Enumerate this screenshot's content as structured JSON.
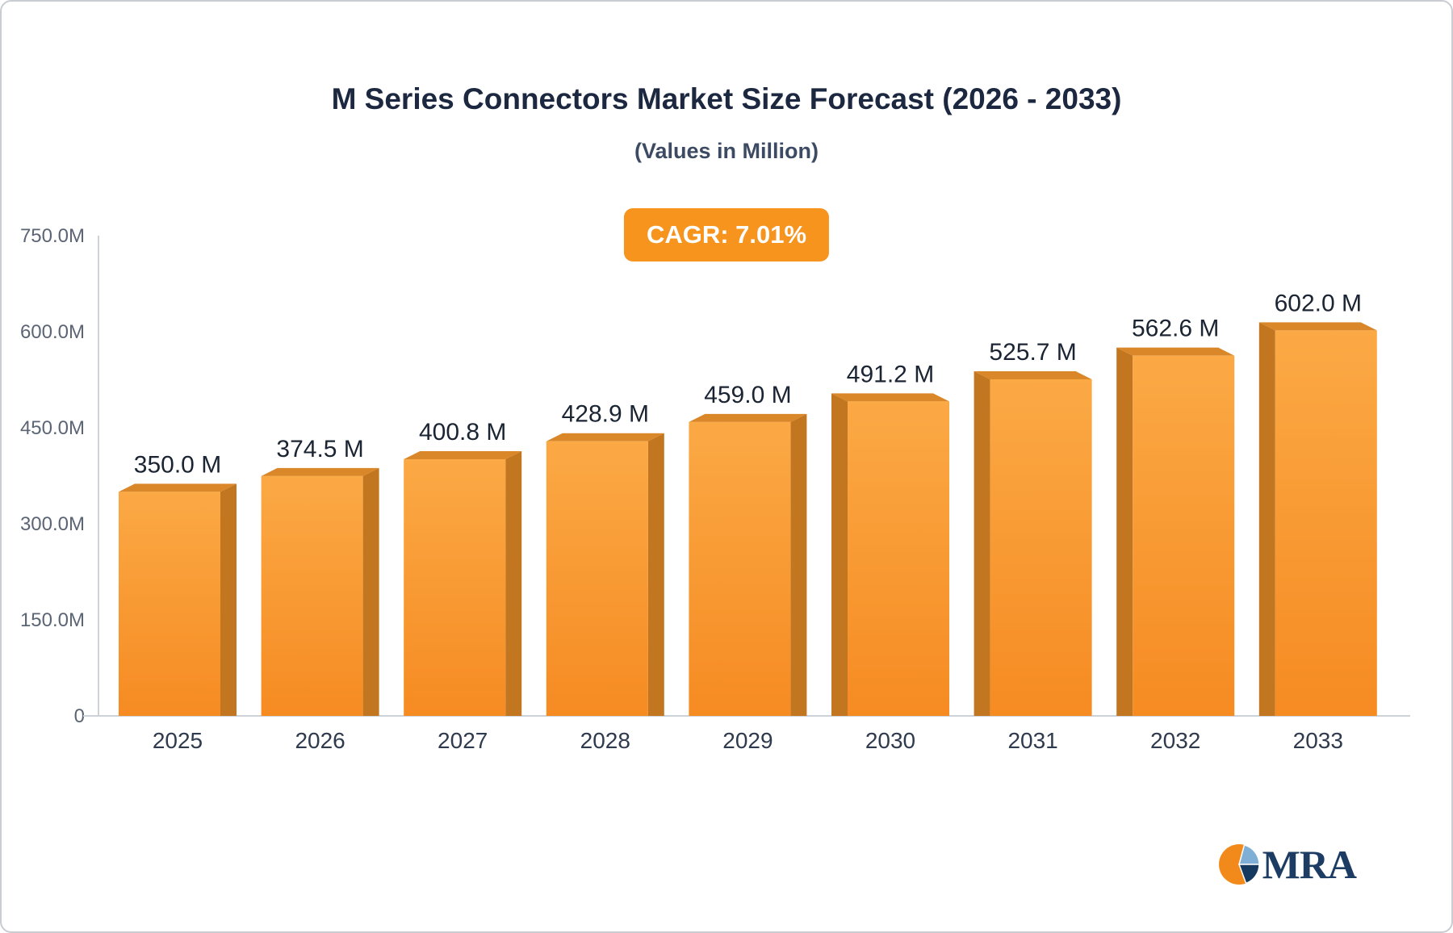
{
  "chart_data": {
    "type": "bar",
    "title": "M Series Connectors Market Size Forecast (2026 - 2033)",
    "subtitle": "(Values in Million)",
    "badge": "CAGR: 7.01%",
    "categories": [
      "2025",
      "2026",
      "2027",
      "2028",
      "2029",
      "2030",
      "2031",
      "2032",
      "2033"
    ],
    "values": [
      350.0,
      374.5,
      400.8,
      428.9,
      459.0,
      491.2,
      525.7,
      562.6,
      602.0
    ],
    "value_labels": [
      "350.0 M",
      "374.5 M",
      "400.8 M",
      "428.9 M",
      "459.0 M",
      "491.2 M",
      "525.7 M",
      "562.6 M",
      "602.0 M"
    ],
    "xlabel": "",
    "ylabel": "",
    "ylim": [
      0,
      750
    ],
    "yticks": [
      0,
      150,
      300,
      450,
      600,
      750
    ],
    "ytick_labels": [
      "0",
      "150.0M",
      "300.0M",
      "450.0M",
      "600.0M",
      "750.0M"
    ],
    "grid": false,
    "legend": "none",
    "bar_color_top": "#FBA945",
    "bar_color_bottom": "#F68B22",
    "bar_side_color": "#C2761F",
    "bar_top_color": "#DA872A",
    "accent_color": "#F7941E",
    "axis_color": "#cdd2d9",
    "value_label_color": "#1b2433",
    "xtick_color": "#2e3a4d",
    "ytick_color": "#5c6575"
  },
  "logo": {
    "text": "MRA"
  }
}
